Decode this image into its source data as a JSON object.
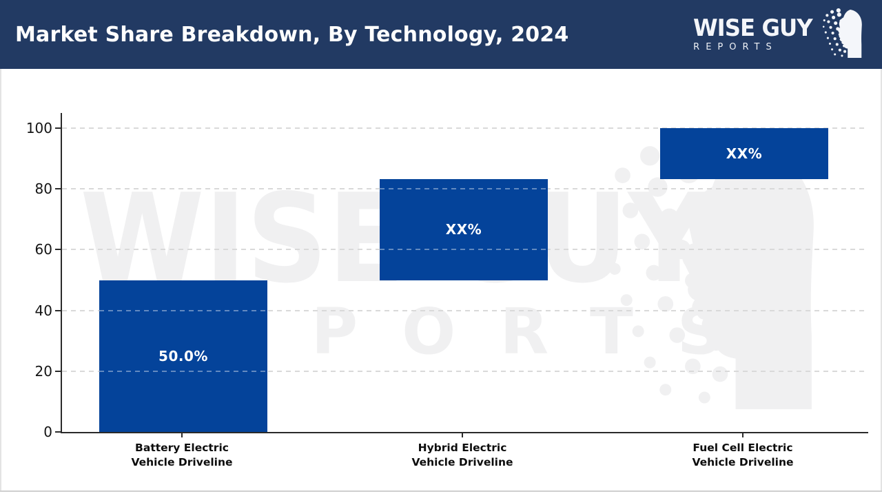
{
  "header": {
    "title": "Market Share Breakdown, By Technology, 2024",
    "logo": {
      "line1": "WISE GUY",
      "line2": "REPORTS"
    }
  },
  "watermark": {
    "line1": "WISE GUY",
    "line2": "REPORTS"
  },
  "colors": {
    "header_bg": "#223a63",
    "bar": "#04439a",
    "grid": "#d9d9d9",
    "axis": "#2a2a2a",
    "watermark": "#f0f0f1"
  },
  "chart_data": {
    "type": "bar",
    "subtype": "waterfall",
    "title": "Market Share Breakdown, By Technology, 2024",
    "categories": [
      "Battery Electric\nVehicle Driveline",
      "Hybrid Electric\nVehicle Driveline",
      "Fuel Cell Electric\nVehicle Driveline"
    ],
    "segments": [
      {
        "category": "Battery Electric Vehicle Driveline",
        "base": 0,
        "value": 50.0,
        "display": "50.0%"
      },
      {
        "category": "Hybrid Electric Vehicle Driveline",
        "base": 50.0,
        "value": 33.3,
        "display": "XX%"
      },
      {
        "category": "Fuel Cell Electric Vehicle Driveline",
        "base": 83.3,
        "value": 16.7,
        "display": "XX%"
      }
    ],
    "xlabel": "",
    "ylabel": "",
    "ylim": [
      0,
      100
    ],
    "yticks": [
      0,
      20,
      40,
      60,
      80,
      100
    ],
    "grid": true,
    "legend": "none",
    "bar_color": "#04439a",
    "bar_label_color": "#ffffff"
  }
}
